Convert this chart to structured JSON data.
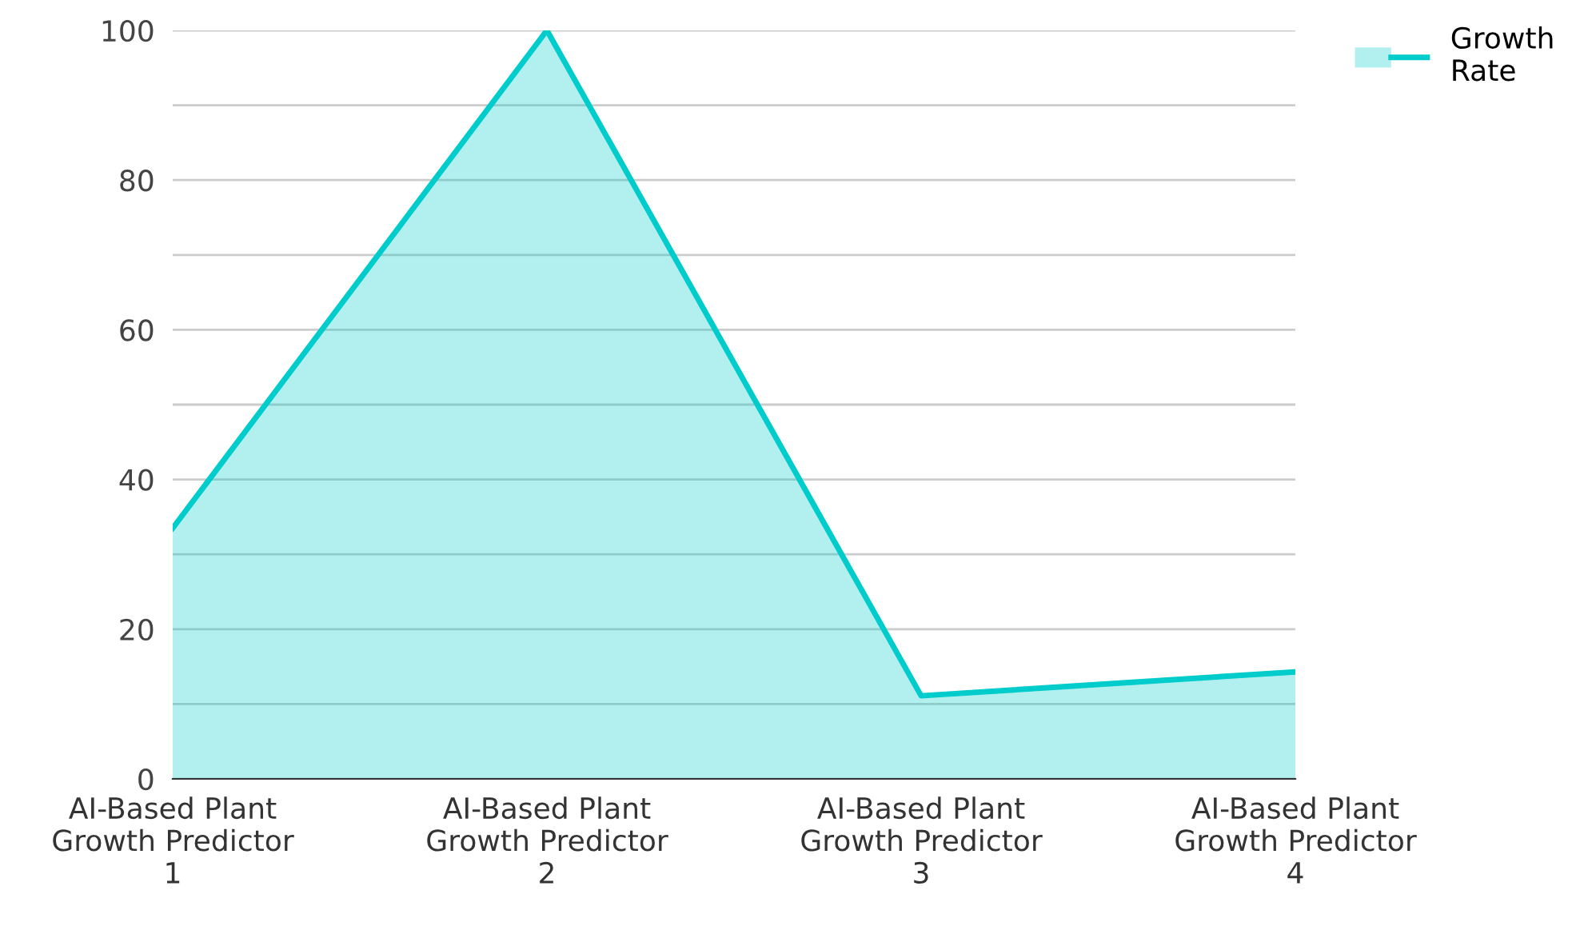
{
  "chart_data": {
    "type": "area",
    "categories": [
      "AI-Based Plant\nGrowth Predictor\n1",
      "AI-Based Plant\nGrowth Predictor\n2",
      "AI-Based Plant\nGrowth Predictor\n3",
      "AI-Based Plant\nGrowth Predictor\n4"
    ],
    "series": [
      {
        "name": "Growth\nRate",
        "color": "#00cccc",
        "values": [
          33.5,
          100,
          11.1,
          14.3
        ]
      }
    ],
    "ylim": [
      0,
      100
    ],
    "yticks": [
      0,
      {
        "value": 10,
        "label": null
      },
      20,
      {
        "value": 30,
        "label": null
      },
      40,
      {
        "value": 50,
        "label": null
      },
      60,
      {
        "value": 70,
        "label": null
      },
      80,
      {
        "value": 90,
        "label": null
      },
      100
    ],
    "grid": "y",
    "legend": "top right",
    "marker": "none",
    "line_style": "solid"
  }
}
